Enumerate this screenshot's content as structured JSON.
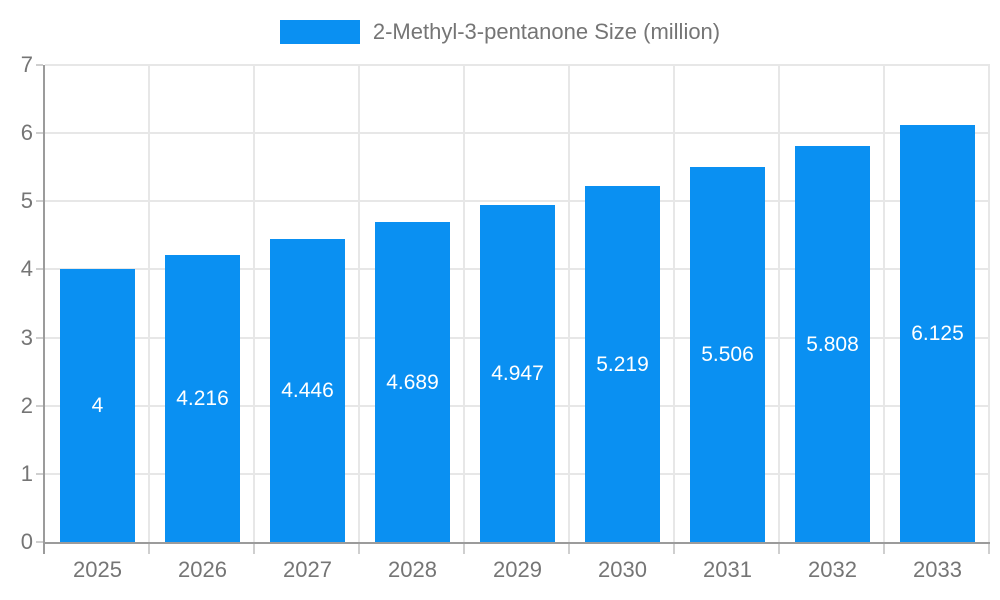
{
  "chart_data": {
    "type": "bar",
    "title": "2-Methyl-3-pentanone Size (million)",
    "categories": [
      "2025",
      "2026",
      "2027",
      "2028",
      "2029",
      "2030",
      "2031",
      "2032",
      "2033"
    ],
    "values": [
      4,
      4.216,
      4.446,
      4.689,
      4.947,
      5.219,
      5.506,
      5.808,
      6.125
    ],
    "value_labels": [
      "4",
      "4.216",
      "4.446",
      "4.689",
      "4.947",
      "5.219",
      "5.506",
      "5.808",
      "6.125"
    ],
    "xlabel": "",
    "ylabel": "",
    "ylim": [
      0,
      7
    ],
    "yticks": [
      0,
      1,
      2,
      3,
      4,
      5,
      6,
      7
    ],
    "grid": true,
    "legend_position": "top-center",
    "colors": {
      "bar": "#0a90f2",
      "grid": "#e7e7e7",
      "axis": "#9b9b9b",
      "tick": "#cfcfcf",
      "tick_text": "#757575",
      "bar_label_text": "#ffffff",
      "background": "#ffffff"
    }
  }
}
